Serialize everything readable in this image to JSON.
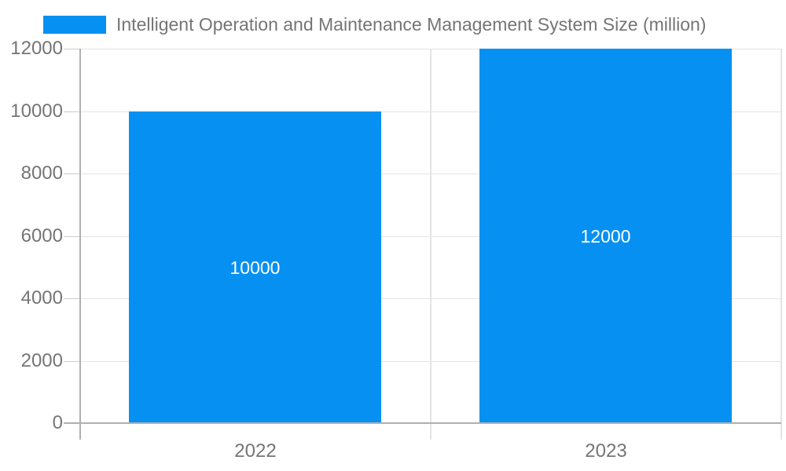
{
  "legend": {
    "label": "Intelligent Operation and Maintenance Management System Size (million)"
  },
  "chart_data": {
    "type": "bar",
    "title": "Intelligent Operation and Maintenance Management System Size (million)",
    "categories": [
      "2022",
      "2023"
    ],
    "series": [
      {
        "name": "Intelligent Operation and Maintenance Management System Size (million)",
        "values": [
          10000,
          12000
        ]
      }
    ],
    "bar_value_labels": [
      "10000",
      "12000"
    ],
    "xlabel": "",
    "ylabel": "",
    "ylim": [
      0,
      12000
    ],
    "yticks": [
      0,
      2000,
      4000,
      6000,
      8000,
      10000,
      12000
    ],
    "grid": true,
    "legend_position": "top-left",
    "colors": {
      "bar": "#0691f2",
      "bar_label_text": "#ffffff",
      "axis_text": "#757575",
      "gridline": "#e4e4e4",
      "axis_line": "#b0b0b0",
      "tick": "#cccccc",
      "background": "#ffffff"
    }
  }
}
